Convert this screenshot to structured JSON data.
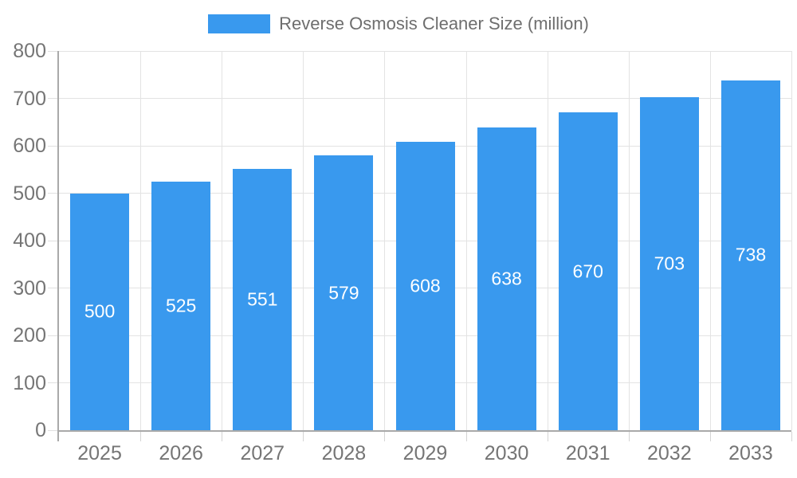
{
  "window": {
    "background": "#ffffff"
  },
  "legend": {
    "label": "Reverse Osmosis Cleaner Size (million)",
    "swatch_color": "#3999EE",
    "text_color": "#6e6e6e"
  },
  "chart_data": {
    "type": "bar",
    "title": "Reverse Osmosis Cleaner Size (million)",
    "series_name": "Reverse Osmosis Cleaner Size (million)",
    "categories": [
      "2025",
      "2026",
      "2027",
      "2028",
      "2029",
      "2030",
      "2031",
      "2032",
      "2033"
    ],
    "values": [
      500,
      525,
      551,
      579,
      608,
      638,
      670,
      703,
      738
    ],
    "xlabel": "",
    "ylabel": "",
    "ylim": [
      0,
      800
    ],
    "ytick_step": 100,
    "grid": true,
    "legend_position": "top",
    "bar_labels_inside": true,
    "bar_color": "#3999EE",
    "bar_label_color": "#ffffff",
    "axis_text_color": "#757575",
    "grid_color": "#e3e3e3",
    "y_tick_color": "#e0e0e0",
    "x_tick_color": "#d4d4d4",
    "axis_line_color": "#a9a9a9"
  }
}
